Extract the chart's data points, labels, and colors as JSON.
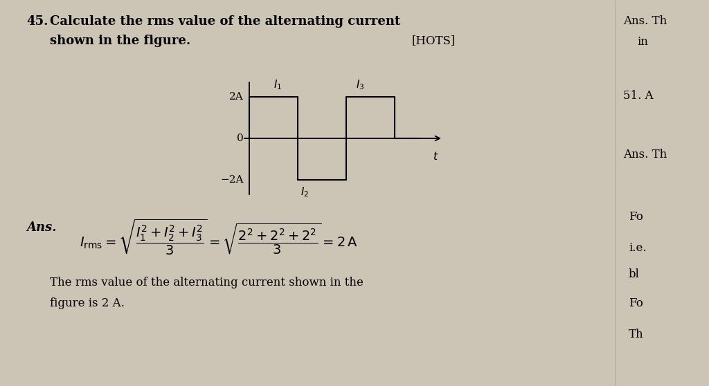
{
  "background_color": "#ccc4b4",
  "title_number": "45.",
  "title_text": "Calculate the rms value of the alternating current",
  "title_text2": "shown in the figure.",
  "hots_label": "[HOTS]",
  "right_ans_text": "Ans. Th",
  "right_in_text": "in",
  "right_51": "51. A",
  "right_ans2": "Ans. Th",
  "right_fo": "Fo",
  "right_ie": "i.e.",
  "right_bl": "bl",
  "right_fo2": "Fo",
  "right_th": "Th",
  "ans_label": "Ans.",
  "conclusion_line1": "The rms value of the alternating current shown in the",
  "conclusion_line2": "figure is 2 A.",
  "wave_y2A": "2A",
  "wave_y0": "0",
  "wave_ym2A": "−2A",
  "wave_I1": "$I_1$",
  "wave_I2": "$I_2$",
  "wave_I3": "$I_3$",
  "wave_t": "$t$",
  "fig_width": 10.24,
  "fig_height": 5.58,
  "dpi": 100
}
